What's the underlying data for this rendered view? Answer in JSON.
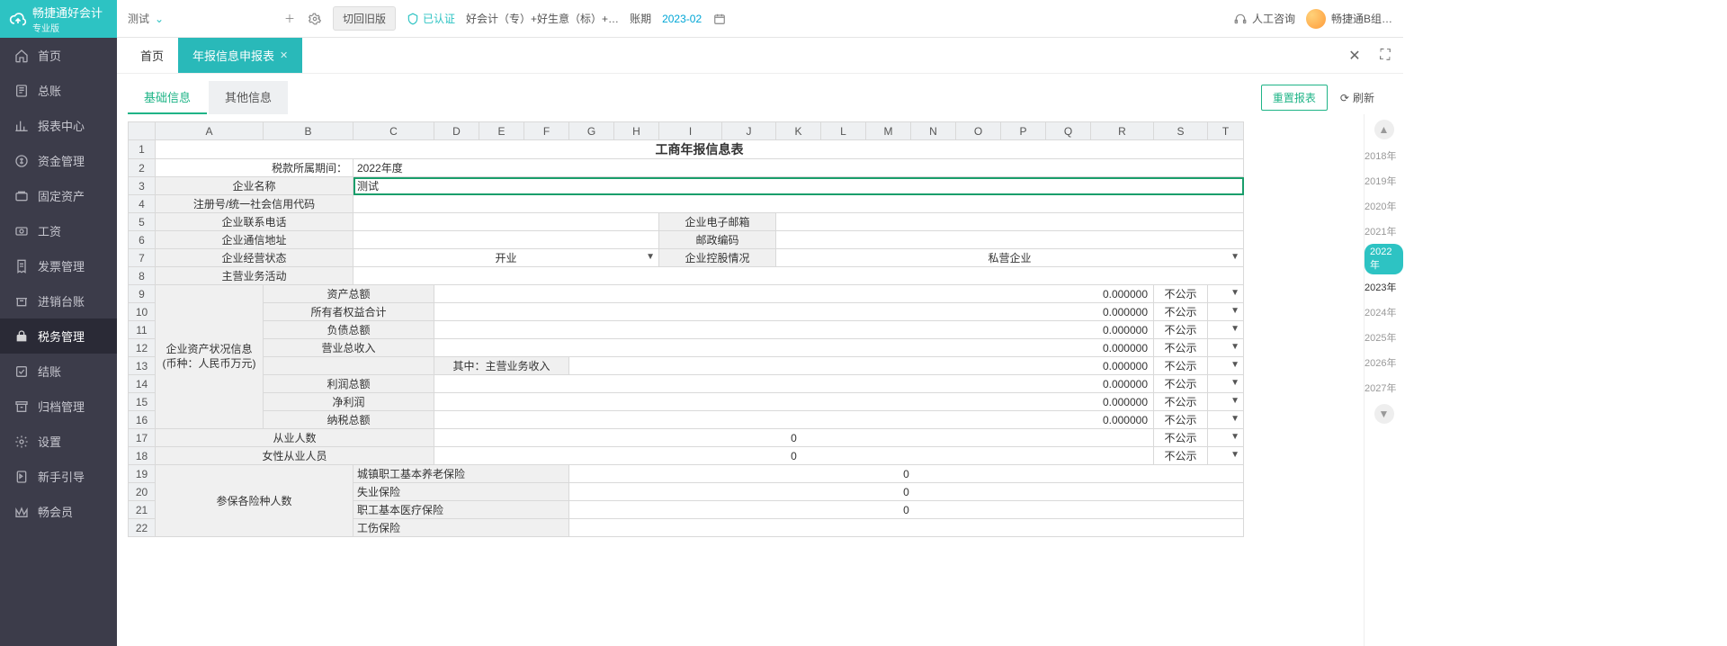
{
  "brand": {
    "name": "畅捷通好会计",
    "sub": "专业版"
  },
  "nav": [
    {
      "icon": "home",
      "label": "首页"
    },
    {
      "icon": "ledger",
      "label": "总账"
    },
    {
      "icon": "report",
      "label": "报表中心"
    },
    {
      "icon": "fund",
      "label": "资金管理"
    },
    {
      "icon": "asset",
      "label": "固定资产"
    },
    {
      "icon": "salary",
      "label": "工资"
    },
    {
      "icon": "invoice",
      "label": "发票管理"
    },
    {
      "icon": "stock",
      "label": "进销台账"
    },
    {
      "icon": "tax",
      "label": "税务管理"
    },
    {
      "icon": "close",
      "label": "结账"
    },
    {
      "icon": "archive",
      "label": "归档管理"
    },
    {
      "icon": "settings",
      "label": "设置"
    },
    {
      "icon": "guide",
      "label": "新手引导"
    },
    {
      "icon": "vip",
      "label": "畅会员"
    }
  ],
  "nav_active_index": 8,
  "topbar": {
    "company": "测试",
    "switch_old": "切回旧版",
    "certified": "已认证",
    "product": "好会计（专）+好生意（标）+…",
    "period_label": "账期",
    "period_value": "2023-02",
    "support": "人工咨询",
    "user": "畅捷通B组…"
  },
  "tabs": [
    {
      "label": "首页",
      "active": false,
      "closable": false
    },
    {
      "label": "年报信息申报表",
      "active": true,
      "closable": true
    }
  ],
  "subtabs": {
    "basic": "基础信息",
    "other": "其他信息"
  },
  "actions": {
    "reset": "重置报表",
    "refresh": "刷新"
  },
  "years": {
    "list": [
      "2018年",
      "2019年",
      "2020年",
      "2021年",
      "2022年",
      "2023年",
      "2024年",
      "2025年",
      "2026年",
      "2027年"
    ],
    "current": "2022年",
    "strong": "2023年"
  },
  "columns": [
    "A",
    "B",
    "C",
    "D",
    "E",
    "F",
    "G",
    "H",
    "I",
    "J",
    "K",
    "L",
    "M",
    "N",
    "O",
    "P",
    "Q",
    "R",
    "S",
    "T"
  ],
  "sheet": {
    "title": "工商年报信息表",
    "tax_period_label": "税款所属期间：",
    "tax_period_value": "2022年度",
    "company_name_label": "企业名称",
    "company_name_value": "测试",
    "reg_code_label": "注册号/统一社会信用代码",
    "phone_label": "企业联系电话",
    "email_label": "企业电子邮箱",
    "address_label": "企业通信地址",
    "postcode_label": "邮政编码",
    "status_label": "企业经营状态",
    "status_value": "开业",
    "holding_label": "企业控股情况",
    "holding_value": "私营企业",
    "main_biz_label": "主营业务活动",
    "asset_group_label": "企业资产状况信息(币种：人民币万元)",
    "metrics": {
      "total_assets": "资产总额",
      "owner_equity": "所有者权益合计",
      "total_liab": "负债总额",
      "total_revenue": "营业总收入",
      "main_revenue_prefix": "其中：主营业务收入",
      "total_profit": "利润总额",
      "net_profit": "净利润",
      "total_tax": "纳税总额"
    },
    "zero_val": "0.000000",
    "disclose": "不公示",
    "employees_label": "从业人数",
    "female_label": "女性从业人员",
    "zero_int": "0",
    "insurance_group_label": "参保各险种人数",
    "insurance": {
      "pension": "城镇职工基本养老保险",
      "unemployment": "失业保险",
      "medical": "职工基本医疗保险",
      "injury": "工伤保险"
    }
  },
  "colors": {
    "brand_teal": "#2dc3c3",
    "sidebar_bg": "#3c3c4a",
    "green": "#1fb487",
    "grid_border": "#d9d9d9",
    "header_bg": "#eef0f2"
  }
}
